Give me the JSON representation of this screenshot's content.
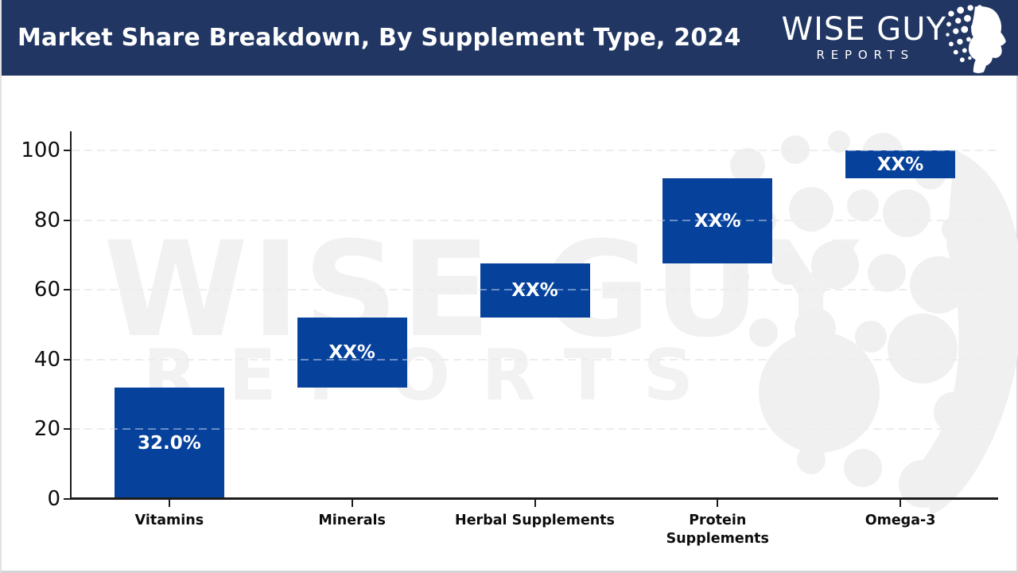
{
  "header": {
    "title": "Market Share Breakdown, By Supplement Type, 2024",
    "logo": {
      "name_line": "WISE GUY",
      "sub_line": "REPORTS"
    }
  },
  "watermark": {
    "name_line": "WISE GUY",
    "sub_line": "REPORTS"
  },
  "chart_data": {
    "type": "bar",
    "subtype": "waterfall",
    "title": "Market Share Breakdown, By Supplement Type, 2024",
    "categories": [
      "Vitamins",
      "Minerals",
      "Herbal Supplements",
      "Protein\nSupplements",
      "Omega-3"
    ],
    "segments": [
      {
        "category": "Vitamins",
        "label": "32.0%",
        "start": 0,
        "end": 32
      },
      {
        "category": "Minerals",
        "label": "XX%",
        "start": 32,
        "end": 52
      },
      {
        "category": "Herbal Supplements",
        "label": "XX%",
        "start": 52,
        "end": 67.5
      },
      {
        "category": "Protein Supplements",
        "label": "XX%",
        "start": 67.5,
        "end": 92
      },
      {
        "category": "Omega-3",
        "label": "XX%",
        "start": 92,
        "end": 100
      }
    ],
    "yticks": [
      0,
      20,
      40,
      60,
      80,
      100
    ],
    "ylim": [
      0,
      105
    ],
    "xlabel": "",
    "ylabel": "",
    "grid": "horizontal-dashed",
    "legend": "none",
    "bar_color": "#06419c",
    "bar_label_color": "#ffffff"
  }
}
